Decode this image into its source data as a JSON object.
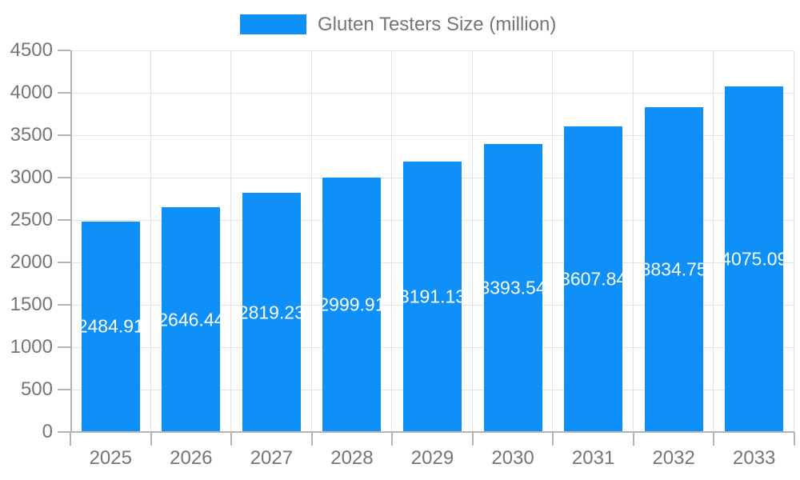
{
  "legend": {
    "label": "Gluten Testers Size (million)"
  },
  "colors": {
    "bar": "#0e90f8",
    "axis_text": "#757575",
    "grid": "#e4e4e4",
    "axis_line": "#b3b3b3",
    "data_label": "#ffffff",
    "background": "#ffffff"
  },
  "chart_data": {
    "type": "bar",
    "title": "Gluten Testers Size (million)",
    "series_name": "Gluten Testers Size (million)",
    "categories": [
      "2025",
      "2026",
      "2027",
      "2028",
      "2029",
      "2030",
      "2031",
      "2032",
      "2033"
    ],
    "values": [
      2484.91,
      2646.44,
      2819.23,
      2999.91,
      3191.13,
      3393.54,
      3607.84,
      3834.75,
      4075.09
    ],
    "value_labels": [
      "2484.91",
      "2646.44",
      "2819.23",
      "2999.91",
      "3191.13",
      "3393.54",
      "3607.84",
      "3834.75",
      "4075.09"
    ],
    "xlabel": "",
    "ylabel": "",
    "ylim": [
      0,
      4500
    ],
    "yticks": [
      0,
      500,
      1000,
      1500,
      2000,
      2500,
      3000,
      3500,
      4000,
      4500
    ],
    "grid": true,
    "legend_position": "top"
  }
}
